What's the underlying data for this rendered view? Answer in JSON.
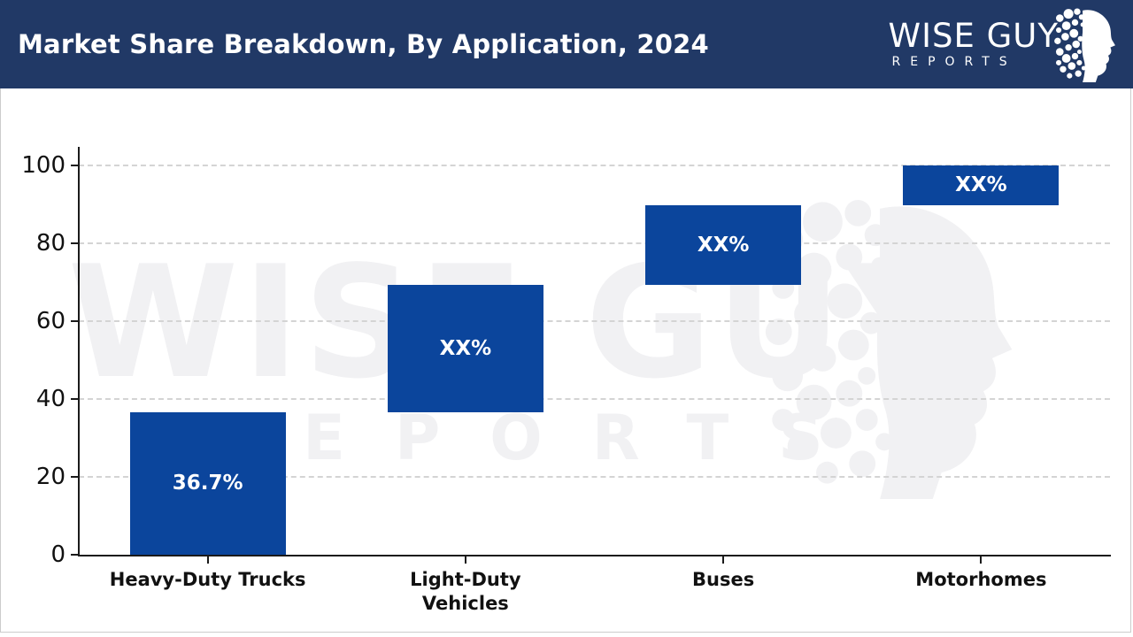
{
  "header": {
    "title": "Market Share Breakdown, By Application, 2024",
    "logo": {
      "line1": "WISE GUY",
      "line2": "REPORTS"
    }
  },
  "watermark": {
    "line1": "WISE GUY",
    "line2": "REPORTS"
  },
  "chart_data": {
    "type": "bar",
    "subtype": "waterfall",
    "title": "Market Share Breakdown, By Application, 2024",
    "categories": [
      "Heavy-Duty Trucks",
      "Light-Duty\nVehicles",
      "Buses",
      "Motorhomes"
    ],
    "segments": [
      {
        "category": "Heavy-Duty Trucks",
        "start": 0,
        "end": 36.7,
        "label": "36.7%"
      },
      {
        "category": "Light-Duty Vehicles",
        "start": 36.7,
        "end": 69.4,
        "label": "XX%"
      },
      {
        "category": "Buses",
        "start": 69.4,
        "end": 89.8,
        "label": "XX%"
      },
      {
        "category": "Motorhomes",
        "start": 89.8,
        "end": 100,
        "label": "XX%"
      }
    ],
    "xlabel": "",
    "ylabel": "",
    "y_ticks": [
      0,
      20,
      40,
      60,
      80,
      100
    ],
    "ylim": [
      0,
      100
    ],
    "grid": "horizontal-dashed",
    "legend": "none",
    "colors": {
      "bar": "#0b459c",
      "bar_label": "#ffffff",
      "grid": "#d4d4d4",
      "axis": "#1a1a1a",
      "header_bg": "#213966",
      "watermark": "#f1f1f3",
      "card_border": "#cccccc"
    }
  }
}
